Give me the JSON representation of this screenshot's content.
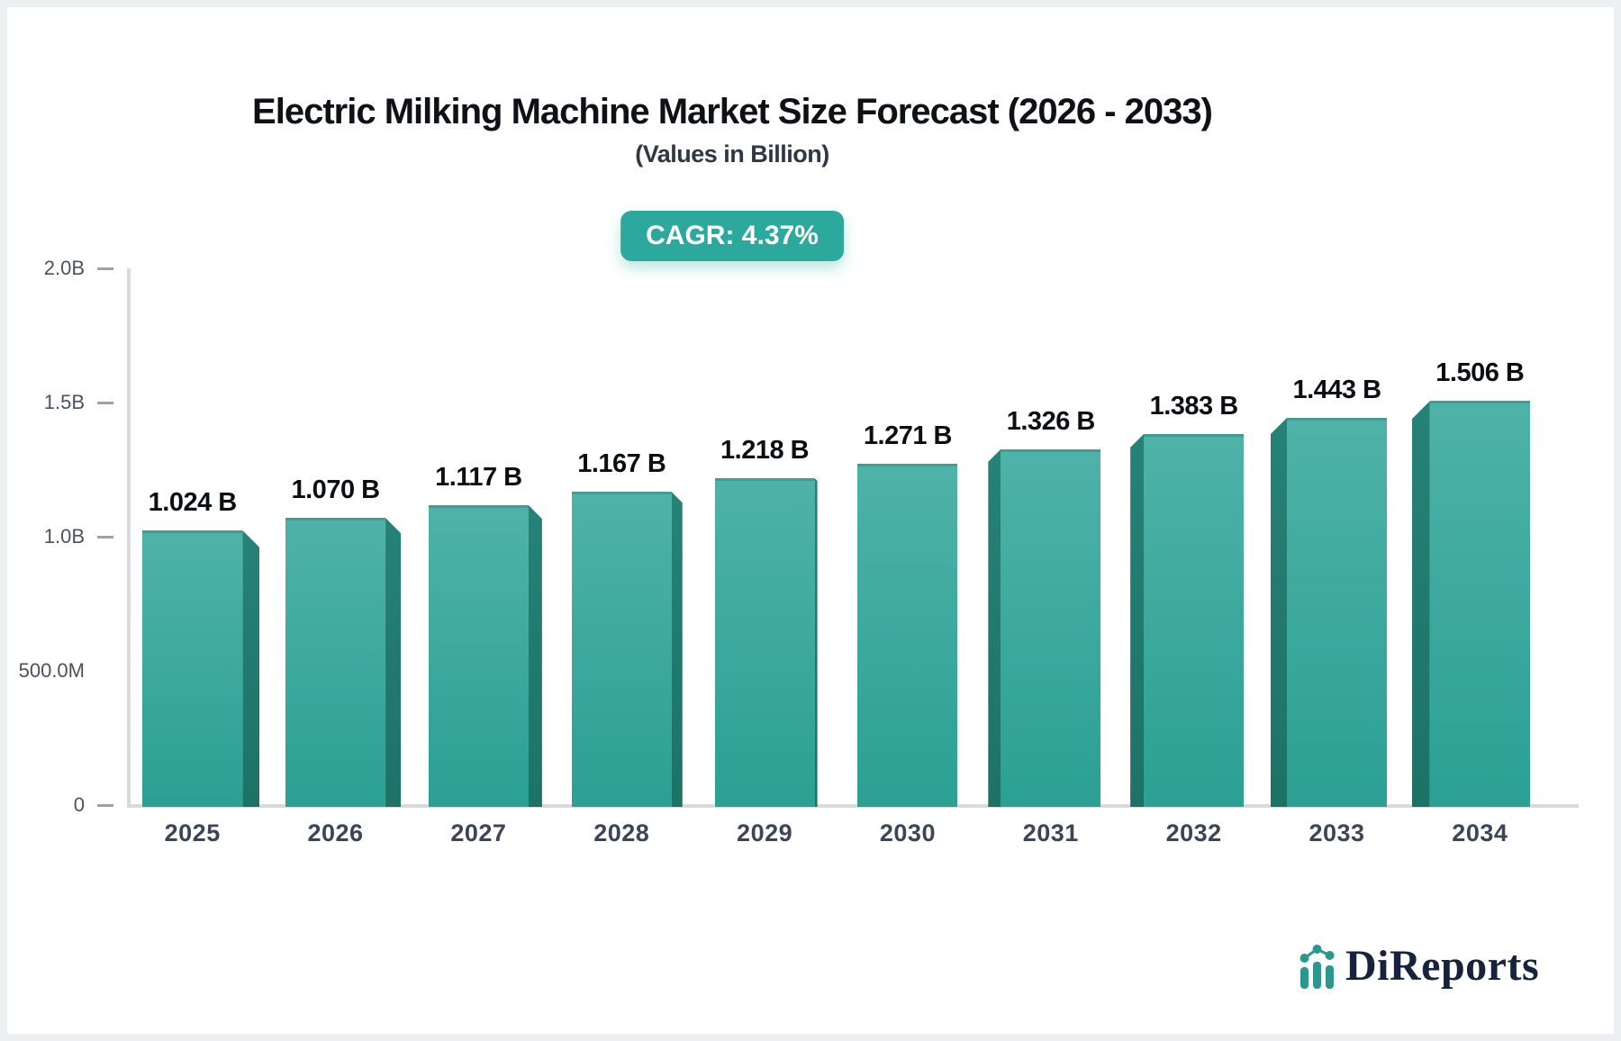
{
  "header": {
    "title": "Electric Milking Machine Market Size Forecast (2026 - 2033)",
    "subtitle": "(Values in Billion)"
  },
  "badge": {
    "label": "CAGR: 4.37%",
    "color": "#2ca89d"
  },
  "chart_data": {
    "type": "bar",
    "title": "Electric Milking Machine Market Size Forecast (2026 - 2033)",
    "subtitle": "(Values in Billion)",
    "cagr": "4.37%",
    "categories": [
      "2025",
      "2026",
      "2027",
      "2028",
      "2029",
      "2030",
      "2031",
      "2032",
      "2033",
      "2034"
    ],
    "values": [
      1.024,
      1.07,
      1.117,
      1.167,
      1.218,
      1.271,
      1.326,
      1.383,
      1.443,
      1.506
    ],
    "bar_labels": [
      "1.024 B",
      "1.070 B",
      "1.117 B",
      "1.167 B",
      "1.218 B",
      "1.271 B",
      "1.326 B",
      "1.383 B",
      "1.443 B",
      "1.506 B"
    ],
    "xlabel": "",
    "ylabel": "",
    "ylim": [
      0,
      2.0
    ],
    "grid": false,
    "legend": false,
    "yticks": [
      {
        "label": "2.0B",
        "value": 2.0,
        "dash": true
      },
      {
        "label": "1.5B",
        "value": 1.5,
        "dash": true
      },
      {
        "label": "1.0B",
        "value": 1.0,
        "dash": true
      },
      {
        "label": "500.0M",
        "value": 0.5,
        "dash": false
      },
      {
        "label": "0",
        "value": 0.0,
        "dash": true
      }
    ],
    "colors": {
      "bar_gradient_top": "#4fb2a8",
      "bar_gradient_bottom": "#2ba093",
      "bar_side_light": "#268277",
      "bar_side_dark": "#1d7266",
      "axis_line": "#d8dade",
      "tick_dash": "#9aa2ac",
      "ytick_text": "#49525f",
      "year_text": "#3b4557",
      "value_text": "#0b0e12"
    }
  },
  "logo": {
    "icon": "bar-chart-logo-icon",
    "text": "DiReports",
    "text_color": "#15233d",
    "icon_color": "#2b978d"
  }
}
